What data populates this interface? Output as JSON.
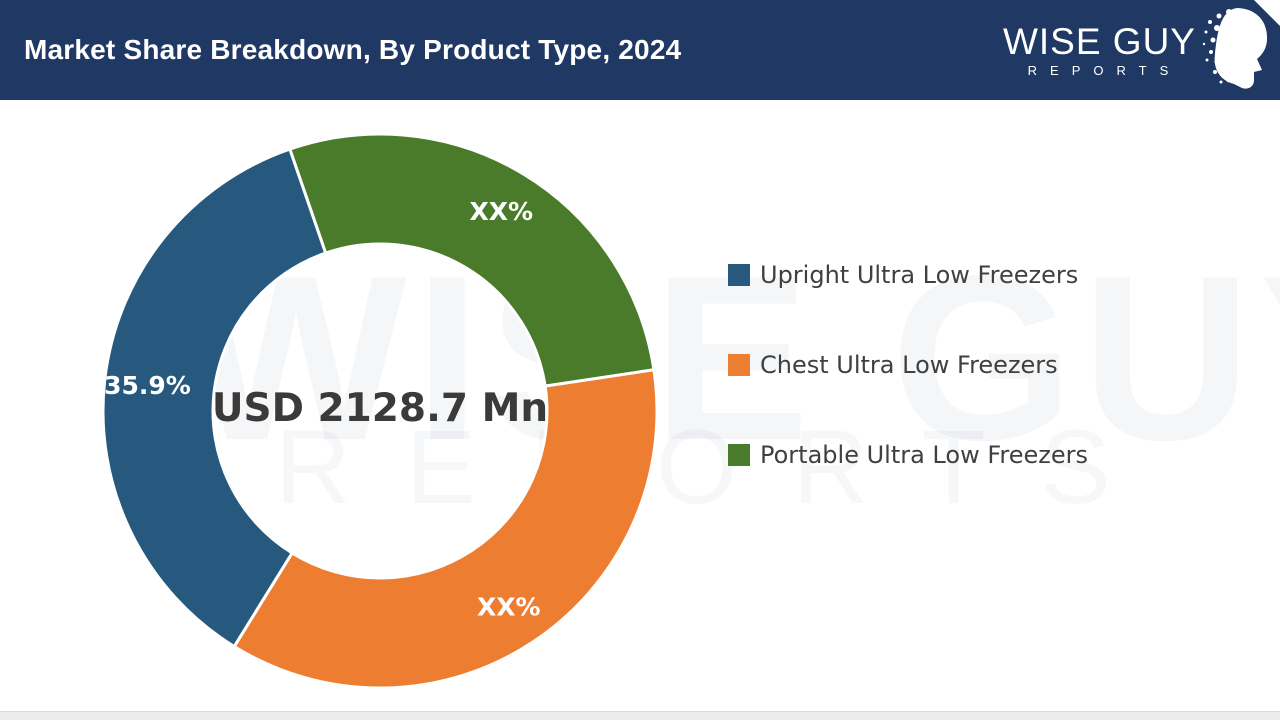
{
  "header": {
    "title": "Market Share Breakdown, By Product Type, 2024",
    "logo": {
      "line1": "WISE GUY",
      "line2": "REPORTS"
    }
  },
  "watermark": {
    "line1": "WISE GUY",
    "line2": "REPORTS"
  },
  "chart_data": {
    "type": "pie",
    "donut": true,
    "title": "Market Share Breakdown, By Product Type, 2024",
    "center_label": "USD 2128.7 Mn",
    "legend_position": "right",
    "segments": [
      {
        "name": "Upright Ultra Low Freezers",
        "value_pct": 35.9,
        "label": "35.9%",
        "color": "#26597D"
      },
      {
        "name": "Chest Ultra Low Freezers",
        "value_pct": 36.2,
        "label": "XX%",
        "color": "#ED7D31"
      },
      {
        "name": "Portable Ultra Low Freezers",
        "value_pct": 27.9,
        "label": "XX%",
        "color": "#4A7B2B"
      }
    ]
  }
}
